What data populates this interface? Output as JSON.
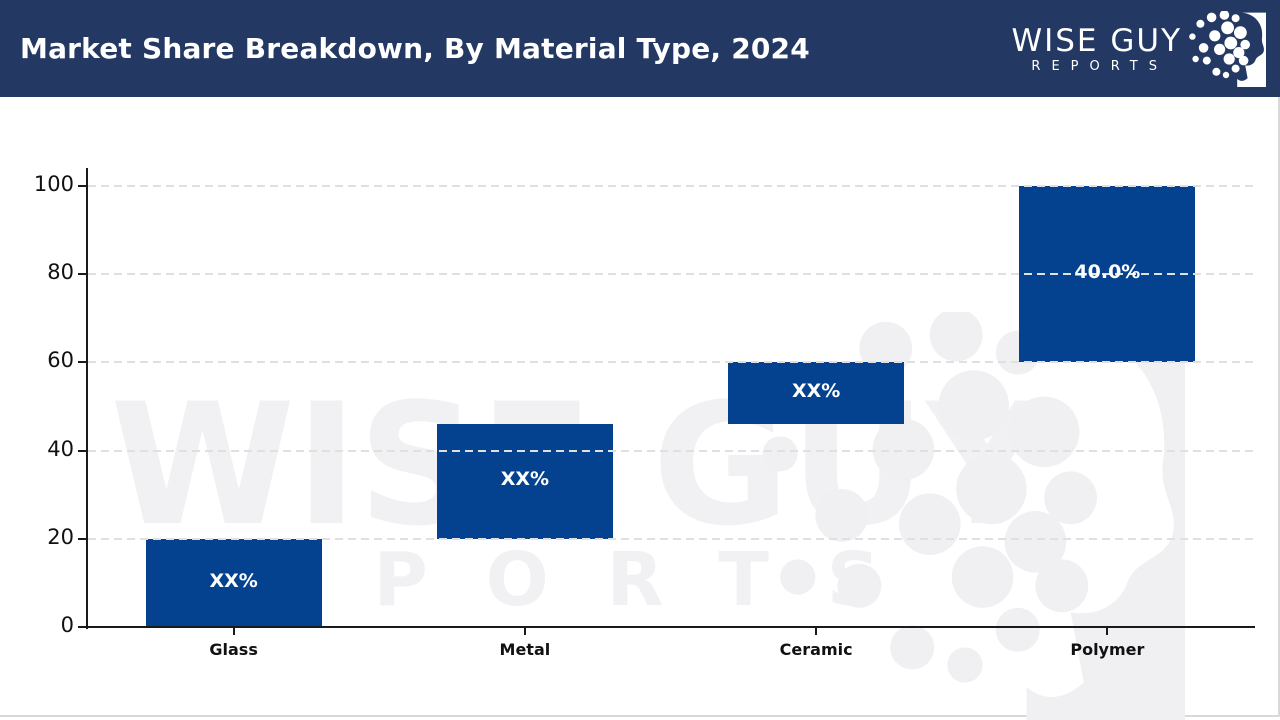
{
  "header": {
    "title": "Market Share Breakdown, By Material Type, 2024",
    "bg_color": "#233862",
    "logo": {
      "line1": "WISE GUY",
      "line2": "REPORTS"
    }
  },
  "watermark": {
    "line1": "WISE GUY",
    "line2": "REPORTS"
  },
  "chart_data": {
    "type": "bar",
    "subtype": "waterfall",
    "title": "Market Share Breakdown, By Material Type, 2024",
    "categories": [
      "Glass",
      "Metal",
      "Ceramic",
      "Polymer"
    ],
    "bars": [
      {
        "category": "Glass",
        "start": 0,
        "end": 20,
        "label": "XX%"
      },
      {
        "category": "Metal",
        "start": 20,
        "end": 46,
        "label": "XX%"
      },
      {
        "category": "Ceramic",
        "start": 46,
        "end": 60,
        "label": "XX%"
      },
      {
        "category": "Polymer",
        "start": 60,
        "end": 100,
        "label": "40.0%"
      }
    ],
    "yticks": [
      0,
      20,
      40,
      60,
      80,
      100
    ],
    "ylim": [
      0,
      100
    ],
    "xlabel": "",
    "ylabel": "",
    "grid": "dashed-horizontal",
    "legend": "none",
    "bar_color": "#04428f",
    "bar_label_color": "#ffffff",
    "axis_color": "#1a1a1a",
    "grid_color": "#e0e0e0"
  }
}
